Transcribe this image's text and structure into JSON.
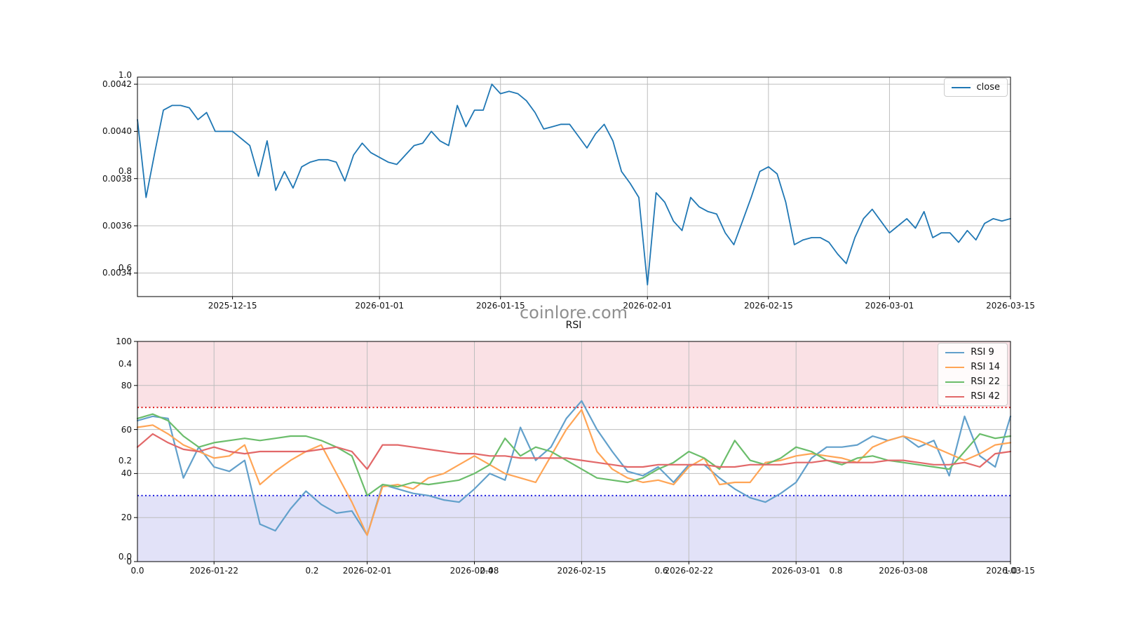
{
  "watermark": "coinlore.com",
  "colors": {
    "close": "#1f77b4",
    "rsi9": "#62a0cb",
    "rsi14": "#ffa556",
    "rsi22": "#6bbd6b",
    "rsi42": "#e26869",
    "overbought_band": "#fae1e5",
    "oversold_band": "#e2e2f8",
    "overbought_line": "#dd1111",
    "oversold_line": "#1111dd",
    "grid": "#bdbdbd",
    "spine": "#000000"
  },
  "overlay_axis": {
    "y_ticks": [
      {
        "label": "1.0",
        "f": 1.0
      },
      {
        "label": "0.8",
        "f": 0.8
      },
      {
        "label": "0.6",
        "f": 0.6
      },
      {
        "label": "0.4",
        "f": 0.4
      },
      {
        "label": "0.2",
        "f": 0.2
      },
      {
        "label": "0.0",
        "f": 0.0
      }
    ],
    "x_ticks": [
      {
        "label": "0.0",
        "f": 0.0
      },
      {
        "label": "0.2",
        "f": 0.2
      },
      {
        "label": "0.4",
        "f": 0.4
      },
      {
        "label": "0.6",
        "f": 0.6
      },
      {
        "label": "0.8",
        "f": 0.8
      },
      {
        "label": "1.0",
        "f": 1.0
      }
    ]
  },
  "chart_data": [
    {
      "type": "line",
      "title": "",
      "x_start_date": "2025-12-04",
      "ylim": [
        0.0033,
        0.00423
      ],
      "grid": true,
      "legend_position": "upper right",
      "legend": [
        {
          "label": "close",
          "color_key": "close",
          "width": 2
        }
      ],
      "x_tick_labels": [
        {
          "label": "2025-12-15",
          "day": 11
        },
        {
          "label": "2026-01-01",
          "day": 28
        },
        {
          "label": "2026-01-15",
          "day": 42
        },
        {
          "label": "2026-02-01",
          "day": 59
        },
        {
          "label": "2026-02-15",
          "day": 73
        },
        {
          "label": "2026-03-01",
          "day": 87
        },
        {
          "label": "2026-03-15",
          "day": 101
        }
      ],
      "y_tick_labels": [
        {
          "label": "0.0042",
          "value": 0.0042
        },
        {
          "label": "0.0040",
          "value": 0.004
        },
        {
          "label": "0.0038",
          "value": 0.0038
        },
        {
          "label": "0.0036",
          "value": 0.0036
        },
        {
          "label": "0.0034",
          "value": 0.0034
        }
      ],
      "series": [
        {
          "name": "close",
          "color_key": "close",
          "width": 1.8,
          "values": [
            0.00405,
            0.00372,
            0.00391,
            0.00409,
            0.00411,
            0.00411,
            0.0041,
            0.00405,
            0.00408,
            0.004,
            0.004,
            0.004,
            0.00397,
            0.00394,
            0.00381,
            0.00396,
            0.00375,
            0.00383,
            0.00376,
            0.00385,
            0.00387,
            0.00388,
            0.00388,
            0.00387,
            0.00379,
            0.0039,
            0.00395,
            0.00391,
            0.00389,
            0.00387,
            0.00386,
            0.0039,
            0.00394,
            0.00395,
            0.004,
            0.00396,
            0.00394,
            0.00411,
            0.00402,
            0.00409,
            0.00409,
            0.0042,
            0.00416,
            0.00417,
            0.00416,
            0.00413,
            0.00408,
            0.00401,
            0.00402,
            0.00403,
            0.00403,
            0.00398,
            0.00393,
            0.00399,
            0.00403,
            0.00396,
            0.00383,
            0.00378,
            0.00372,
            0.00335,
            0.00374,
            0.0037,
            0.00362,
            0.00358,
            0.00372,
            0.00368,
            0.00366,
            0.00365,
            0.00357,
            0.00352,
            0.00362,
            0.00372,
            0.00383,
            0.00385,
            0.00382,
            0.0037,
            0.00352,
            0.00354,
            0.00355,
            0.00355,
            0.00353,
            0.00348,
            0.00344,
            0.00355,
            0.00363,
            0.00367,
            0.00362,
            0.00357,
            0.0036,
            0.00363,
            0.00359,
            0.00366,
            0.00355,
            0.00357,
            0.00357,
            0.00353,
            0.00358,
            0.00354,
            0.00361,
            0.00363,
            0.00362,
            0.00363
          ]
        }
      ]
    },
    {
      "type": "line",
      "title": "RSI",
      "x_start_date": "2026-01-17",
      "ylim": [
        0,
        100
      ],
      "grid": true,
      "legend_position": "upper right",
      "thresholds": {
        "overbought": 70,
        "oversold": 30
      },
      "legend": [
        {
          "label": "RSI 9",
          "color_key": "rsi9",
          "width": 2.5
        },
        {
          "label": "RSI 14",
          "color_key": "rsi14",
          "width": 2.5
        },
        {
          "label": "RSI 22",
          "color_key": "rsi22",
          "width": 2.5
        },
        {
          "label": "RSI 42",
          "color_key": "rsi42",
          "width": 2.5
        }
      ],
      "x_tick_labels": [
        {
          "label": "2026-01-22",
          "day": 5
        },
        {
          "label": "2026-02-01",
          "day": 15
        },
        {
          "label": "2026-02-08",
          "day": 22
        },
        {
          "label": "2026-02-15",
          "day": 29
        },
        {
          "label": "2026-02-22",
          "day": 36
        },
        {
          "label": "2026-03-01",
          "day": 43
        },
        {
          "label": "2026-03-08",
          "day": 50
        },
        {
          "label": "2026-03-15",
          "day": 57
        }
      ],
      "y_tick_labels": [
        {
          "label": "100",
          "value": 100
        },
        {
          "label": "80",
          "value": 80
        },
        {
          "label": "60",
          "value": 60
        },
        {
          "label": "40",
          "value": 40
        },
        {
          "label": "20",
          "value": 20
        },
        {
          "label": "0",
          "value": 0
        }
      ],
      "series": [
        {
          "name": "RSI 9",
          "color_key": "rsi9",
          "width": 2.2,
          "values": [
            64,
            66,
            65,
            38,
            52,
            43,
            41,
            46,
            17,
            14,
            24,
            32,
            26,
            22,
            23,
            12,
            35,
            33,
            31,
            30,
            28,
            27,
            33,
            40,
            37,
            61,
            46,
            52,
            65,
            73,
            60,
            50,
            41,
            39,
            43,
            36,
            44,
            44,
            38,
            33,
            29,
            27,
            31,
            36,
            47,
            52,
            52,
            53,
            57,
            55,
            57,
            52,
            55,
            39,
            66,
            48,
            43,
            66
          ]
        },
        {
          "name": "RSI 14",
          "color_key": "rsi14",
          "width": 2.2,
          "values": [
            61,
            62,
            58,
            53,
            50,
            47,
            48,
            53,
            35,
            41,
            46,
            50,
            53,
            40,
            27,
            12,
            34,
            35,
            33,
            38,
            40,
            44,
            48,
            44,
            40,
            38,
            36,
            48,
            60,
            69,
            50,
            42,
            38,
            36,
            37,
            35,
            43,
            47,
            35,
            36,
            36,
            45,
            46,
            48,
            49,
            48,
            47,
            45,
            52,
            55,
            57,
            55,
            52,
            49,
            46,
            49,
            53,
            54
          ]
        },
        {
          "name": "RSI 22",
          "color_key": "rsi22",
          "width": 2.2,
          "values": [
            65,
            67,
            64,
            57,
            52,
            54,
            55,
            56,
            55,
            56,
            57,
            57,
            55,
            52,
            48,
            30,
            35,
            34,
            36,
            35,
            36,
            37,
            40,
            44,
            56,
            48,
            52,
            50,
            46,
            42,
            38,
            37,
            36,
            38,
            42,
            45,
            50,
            47,
            42,
            55,
            46,
            44,
            47,
            52,
            50,
            46,
            44,
            47,
            48,
            46,
            45,
            44,
            43,
            42,
            50,
            58,
            56,
            57
          ]
        },
        {
          "name": "RSI 42",
          "color_key": "rsi42",
          "width": 2.2,
          "values": [
            52,
            58,
            54,
            51,
            50,
            52,
            50,
            49,
            50,
            50,
            50,
            50,
            51,
            52,
            50,
            42,
            53,
            53,
            52,
            51,
            50,
            49,
            49,
            48,
            48,
            47,
            47,
            47,
            47,
            46,
            45,
            44,
            43,
            43,
            44,
            44,
            44,
            44,
            43,
            43,
            44,
            44,
            44,
            45,
            45,
            46,
            45,
            45,
            45,
            46,
            46,
            45,
            44,
            44,
            45,
            43,
            49,
            50
          ]
        }
      ]
    }
  ]
}
